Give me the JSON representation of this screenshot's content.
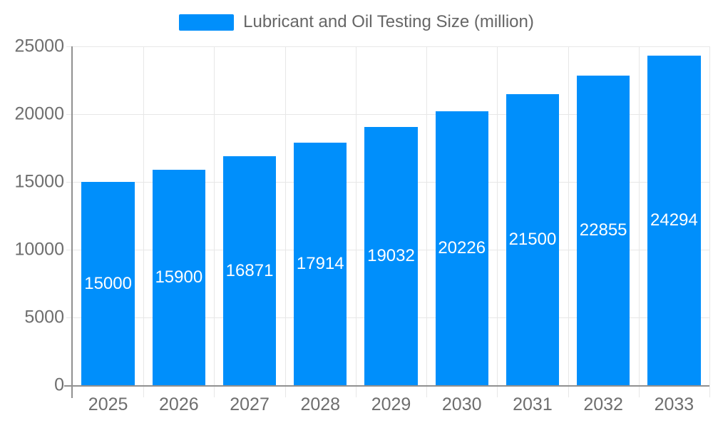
{
  "legend": {
    "label": "Lubricant and Oil Testing Size (million)"
  },
  "chart_data": {
    "type": "bar",
    "title": "Lubricant and Oil Testing Size (million)",
    "categories": [
      "2025",
      "2026",
      "2027",
      "2028",
      "2029",
      "2030",
      "2031",
      "2032",
      "2033"
    ],
    "values": [
      15000,
      15900,
      16871,
      17914,
      19032,
      20226,
      21500,
      22855,
      24294
    ],
    "series": [
      {
        "name": "Lubricant and Oil Testing Size (million)",
        "values": [
          15000,
          15900,
          16871,
          17914,
          19032,
          20226,
          21500,
          22855,
          24294
        ]
      }
    ],
    "xlabel": "",
    "ylabel": "",
    "ylim": [
      0,
      25000
    ],
    "yticks": [
      0,
      5000,
      10000,
      15000,
      20000,
      25000
    ],
    "grid": true,
    "legend_position": "top-center",
    "data_labels": "inside-center",
    "colors": {
      "bar": "#008FFB",
      "bar_label": "#ffffff",
      "axis_text": "#6e6e6e",
      "legend_text": "#666666",
      "grid": "#e7e7e7",
      "axis_line": "#909090",
      "background": "#ffffff"
    }
  }
}
